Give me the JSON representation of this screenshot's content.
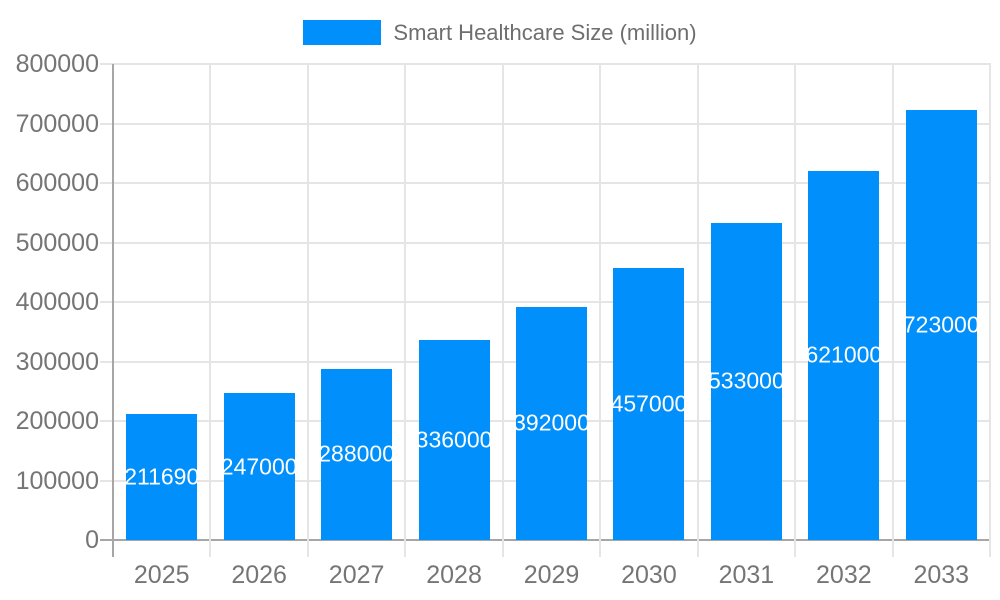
{
  "chart_data": {
    "type": "bar",
    "title": "Smart Healthcare Size (million)",
    "legend_entries": [
      "Smart Healthcare Size (million)"
    ],
    "legend_position": "top",
    "categories": [
      "2025",
      "2026",
      "2027",
      "2028",
      "2029",
      "2030",
      "2031",
      "2032",
      "2033"
    ],
    "series": [
      {
        "name": "Smart Healthcare Size (million)",
        "values": [
          211690,
          247000,
          288000,
          336000,
          392000,
          457000,
          533000,
          621000,
          723000
        ]
      }
    ],
    "value_labels": [
      "211690",
      "247000",
      "288000",
      "336000",
      "392000",
      "457000",
      "533000",
      "621000",
      "723000"
    ],
    "xlabel": "",
    "ylabel": "",
    "ylim": [
      0,
      800000
    ],
    "y_ticks": [
      0,
      100000,
      200000,
      300000,
      400000,
      500000,
      600000,
      700000,
      800000
    ],
    "y_tick_labels": [
      "0",
      "100000",
      "200000",
      "300000",
      "400000",
      "500000",
      "600000",
      "700000",
      "800000"
    ],
    "grid": true
  },
  "colors": {
    "bar": "#008FFB",
    "grid": "#e5e5e5",
    "axis": "#a6a6a6",
    "tick_label": "#757575",
    "legend_text": "#6e6e6e",
    "value_label": "#ffffff",
    "background": "#ffffff"
  }
}
